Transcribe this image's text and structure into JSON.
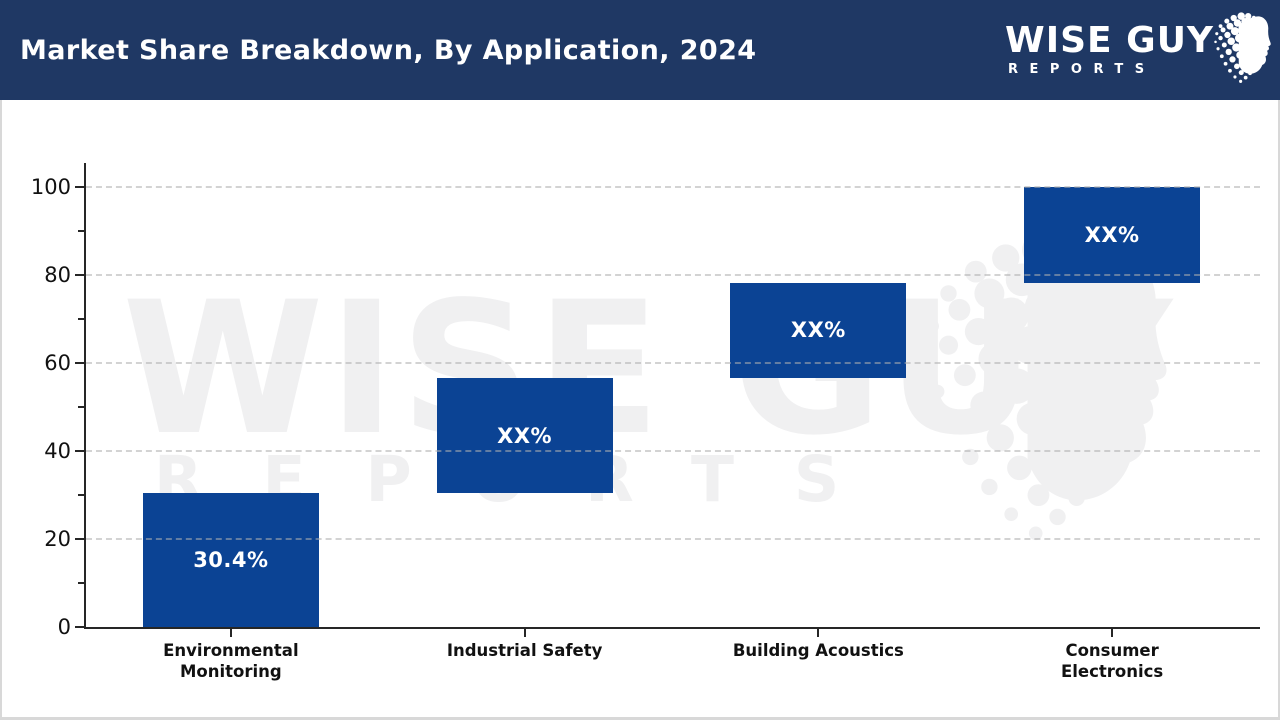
{
  "header": {
    "title": "Market Share Breakdown, By Application, 2024",
    "logo": {
      "line1": "WISE GUY",
      "line2": "REPORTS"
    }
  },
  "watermark": {
    "line1": "WISE GUY",
    "line2": "REPORTS"
  },
  "colors": {
    "header_bg": "#1f3864",
    "bar": "#0b4394",
    "bar_label": "#ffffff",
    "axis": "#262626",
    "gridline": "#c9c9c9",
    "watermark": "#f0f0f1",
    "border": "#d8d8d8"
  },
  "chart_data": {
    "type": "bar",
    "subtype": "waterfall",
    "title": "Market Share Breakdown, By Application, 2024",
    "xlabel": "",
    "ylabel": "",
    "ylim": [
      0,
      105
    ],
    "y_ticks": [
      0,
      20,
      40,
      60,
      80,
      100
    ],
    "y_minor_ticks": [
      10,
      30,
      50,
      70,
      90
    ],
    "grid": "dashed-horizontal",
    "legend": "none",
    "categories": [
      "Environmental Monitoring",
      "Industrial Safety",
      "Building Acoustics",
      "Consumer Electronics"
    ],
    "segments": [
      {
        "category": "Environmental Monitoring",
        "category_lines": [
          "Environmental",
          "Monitoring"
        ],
        "start": 0,
        "end": 30.4,
        "value": 30.4,
        "label": "30.4%"
      },
      {
        "category": "Industrial Safety",
        "category_lines": [
          "Industrial Safety"
        ],
        "start": 30.4,
        "end": 56.6,
        "value": 26.2,
        "label": "XX%"
      },
      {
        "category": "Building Acoustics",
        "category_lines": [
          "Building Acoustics"
        ],
        "start": 56.6,
        "end": 78.2,
        "value": 21.6,
        "label": "XX%"
      },
      {
        "category": "Consumer Electronics",
        "category_lines": [
          "Consumer",
          "Electronics"
        ],
        "start": 78.2,
        "end": 100,
        "value": 21.8,
        "label": "XX%"
      }
    ]
  }
}
